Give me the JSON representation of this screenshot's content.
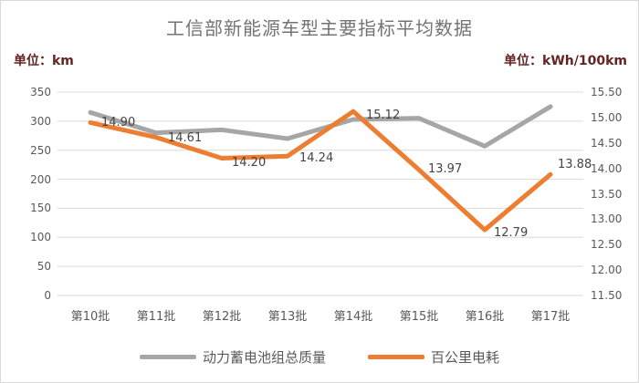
{
  "title": "工信部新能源车型主要指标平均数据",
  "left_unit": "单位：km",
  "right_unit": "单位：kWh/100km",
  "colors": {
    "battery_mass_line": "#a6a6a6",
    "consumption_line": "#ed7d31",
    "gridline": "#d9d9d9",
    "unit_text": "#632423",
    "axis_text": "#595959",
    "title_text": "#737373",
    "data_label_text": "#444444"
  },
  "chart_data": {
    "type": "line",
    "categories": [
      "第10批",
      "第11批",
      "第12批",
      "第13批",
      "第14批",
      "第15批",
      "第16批",
      "第17批"
    ],
    "series": [
      {
        "name": "动力蓄电池组总质量",
        "axis": "left",
        "color": "#a6a6a6",
        "values": [
          315,
          280,
          285,
          270,
          303,
          305,
          257,
          325
        ],
        "data_labels": null
      },
      {
        "name": "百公里电耗",
        "axis": "right",
        "color": "#ed7d31",
        "values": [
          14.9,
          14.61,
          14.2,
          14.24,
          15.12,
          13.97,
          12.79,
          13.88
        ],
        "data_labels": [
          "14.90",
          "14.61",
          "14.20",
          "14.24",
          "15.12",
          "13.97",
          "12.79",
          "13.88"
        ]
      }
    ],
    "left_axis": {
      "title": "单位：km",
      "min": 0,
      "max": 350,
      "step": 50,
      "tick_labels": [
        "350",
        "300",
        "250",
        "200",
        "150",
        "100",
        "50",
        "0"
      ]
    },
    "right_axis": {
      "title": "单位：kWh/100km",
      "min": 11.5,
      "max": 15.5,
      "step": 0.5,
      "tick_labels": [
        "15.50",
        "15.00",
        "14.50",
        "14.00",
        "13.50",
        "13.00",
        "12.50",
        "12.00",
        "11.50"
      ]
    },
    "grid": true,
    "legend_position": "bottom"
  }
}
